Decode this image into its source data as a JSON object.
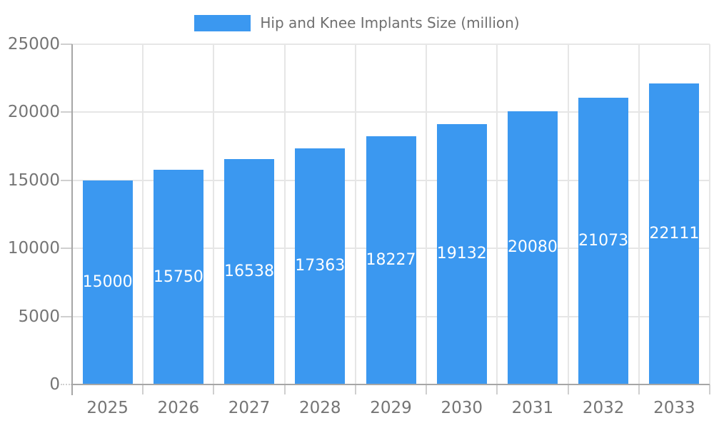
{
  "legend": {
    "label": "Hip and Knee Implants Size (million)"
  },
  "chart_data": {
    "type": "bar",
    "title": "",
    "categories": [
      "2025",
      "2026",
      "2027",
      "2028",
      "2029",
      "2030",
      "2031",
      "2032",
      "2033"
    ],
    "series": [
      {
        "name": "Hip and Knee Implants Size (million)",
        "values": [
          15000,
          15750,
          16538,
          17363,
          18227,
          19132,
          20080,
          21073,
          22111
        ]
      }
    ],
    "bar_value_labels": [
      "15000",
      "15750",
      "16538",
      "17363",
      "18227",
      "19132",
      "20080",
      "21073",
      "22111"
    ],
    "xlabel": "",
    "ylabel": "",
    "ylim": [
      0,
      25000
    ],
    "yticks": [
      0,
      5000,
      10000,
      15000,
      20000,
      25000
    ],
    "ytick_labels": [
      "0",
      "5000",
      "10000",
      "15000",
      "20000",
      "25000"
    ],
    "grid": true,
    "legend_position": "top"
  },
  "colors": {
    "bar": "#3B98F0",
    "bar_label_text": "#FFFFFF",
    "axis_text": "#757575",
    "legend_text": "#6F6F6F",
    "gridline": "#E6E6E6",
    "axis_line": "#A6A6A6",
    "tick": "#CFCFCF",
    "background": "#FFFFFF"
  }
}
